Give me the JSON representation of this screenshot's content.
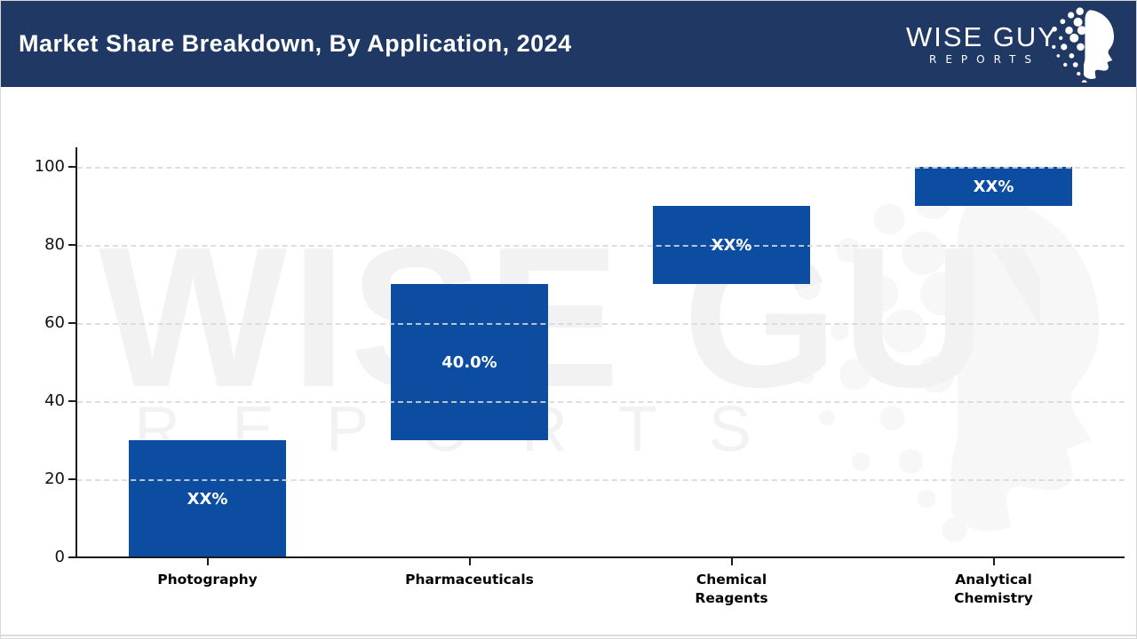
{
  "header": {
    "title": "Market Share Breakdown, By Application, 2024",
    "bg_color": "#1f3864",
    "logo": {
      "line1": "WISE GUY",
      "line2": "REPORTS"
    }
  },
  "watermark": {
    "line1": "WISE GUY",
    "line2": "REPORTS"
  },
  "chart_data": {
    "type": "bar",
    "subtype": "floating-waterfall-segments",
    "title": "Market Share Breakdown, By Application, 2024",
    "categories": [
      "Photography",
      "Pharmaceuticals",
      "Chemical Reagents",
      "Analytical Chemistry"
    ],
    "segments": [
      {
        "category": "Photography",
        "start": 0,
        "end": 30,
        "label": "XX%"
      },
      {
        "category": "Pharmaceuticals",
        "start": 30,
        "end": 70,
        "label": "40.0%"
      },
      {
        "category": "Chemical Reagents",
        "start": 70,
        "end": 90,
        "label": "XX%"
      },
      {
        "category": "Analytical Chemistry",
        "start": 90,
        "end": 100,
        "label": "XX%"
      }
    ],
    "xlabel": "",
    "ylabel": "",
    "ylim": [
      0,
      100
    ],
    "yticks": [
      0,
      20,
      40,
      60,
      80,
      100
    ],
    "grid": "horizontal-dashed",
    "legend": "none",
    "bar_color": "#0c4da2",
    "bar_label_color": "#ffffff",
    "gridline_color": "#d9d9d9"
  }
}
